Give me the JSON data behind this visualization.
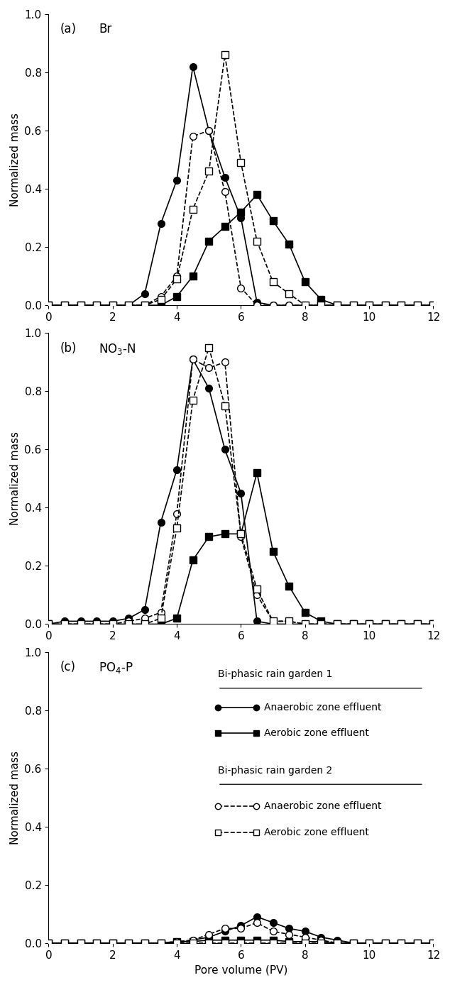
{
  "panel_a_label": "Br",
  "panel_b_label": "NO$_3$-N",
  "panel_c_label": "PO$_4$-P",
  "xlabel": "Pore volume (PV)",
  "ylabel": "Normalized mass",
  "xlim": [
    0,
    12
  ],
  "ylim": [
    0,
    1.0
  ],
  "yticks": [
    0.0,
    0.2,
    0.4,
    0.6,
    0.8,
    1.0
  ],
  "xticks": [
    0,
    2,
    4,
    6,
    8,
    10,
    12
  ],
  "br_g1_anaerobic_x": [
    0,
    0.5,
    1,
    1.5,
    2,
    2.5,
    3,
    3.5,
    4,
    4.5,
    5,
    5.5,
    6,
    6.5,
    7,
    7.5,
    8,
    8.5,
    9,
    9.5,
    10,
    10.5,
    11,
    11.5,
    12
  ],
  "br_g1_anaerobic_y": [
    0,
    0,
    0,
    0,
    0,
    0,
    0.04,
    0.28,
    0.43,
    0.82,
    0.6,
    0.44,
    0.3,
    0.01,
    0.0,
    0.0,
    0.0,
    0.0,
    0.0,
    0.0,
    0.0,
    0.0,
    0.0,
    0.0,
    0.0
  ],
  "br_g1_aerobic_x": [
    0,
    0.5,
    1,
    1.5,
    2,
    2.5,
    3,
    3.5,
    4,
    4.5,
    5,
    5.5,
    6,
    6.5,
    7,
    7.5,
    8,
    8.5,
    9,
    9.5,
    10,
    10.5,
    11,
    11.5,
    12
  ],
  "br_g1_aerobic_y": [
    0,
    0,
    0,
    0,
    0,
    0,
    0,
    0,
    0.03,
    0.1,
    0.22,
    0.27,
    0.32,
    0.38,
    0.29,
    0.21,
    0.08,
    0.02,
    0.0,
    0.0,
    0.0,
    0.0,
    0.0,
    0.0,
    0.0
  ],
  "br_g2_anaerobic_x": [
    0,
    0.5,
    1,
    1.5,
    2,
    2.5,
    3,
    3.5,
    4,
    4.5,
    5,
    5.5,
    6,
    6.5,
    7,
    7.5,
    8,
    8.5,
    9,
    9.5,
    10,
    10.5,
    11,
    11.5,
    12
  ],
  "br_g2_anaerobic_y": [
    0,
    0,
    0,
    0,
    0,
    0,
    0,
    0.03,
    0.1,
    0.58,
    0.6,
    0.39,
    0.06,
    0.0,
    0.0,
    0.0,
    0.0,
    0.0,
    0.0,
    0.0,
    0.0,
    0.0,
    0.0,
    0.0,
    0.0
  ],
  "br_g2_aerobic_x": [
    0,
    0.5,
    1,
    1.5,
    2,
    2.5,
    3,
    3.5,
    4,
    4.5,
    5,
    5.5,
    6,
    6.5,
    7,
    7.5,
    8,
    8.5,
    9,
    9.5,
    10,
    10.5,
    11,
    11.5,
    12
  ],
  "br_g2_aerobic_y": [
    0,
    0,
    0,
    0,
    0,
    0,
    0,
    0.02,
    0.09,
    0.33,
    0.46,
    0.86,
    0.49,
    0.22,
    0.08,
    0.04,
    0.0,
    0.0,
    0.0,
    0.0,
    0.0,
    0.0,
    0.0,
    0.0,
    0.0
  ],
  "no3_g1_anaerobic_x": [
    0,
    0.5,
    1,
    1.5,
    2,
    2.5,
    3,
    3.5,
    4,
    4.5,
    5,
    5.5,
    6,
    6.5,
    7,
    7.5,
    8,
    8.5,
    9,
    9.5,
    10,
    10.5,
    11,
    11.5,
    12
  ],
  "no3_g1_anaerobic_y": [
    0,
    0.01,
    0.01,
    0.01,
    0.01,
    0.02,
    0.05,
    0.35,
    0.53,
    0.91,
    0.81,
    0.6,
    0.45,
    0.01,
    0.0,
    0.0,
    0.0,
    0.0,
    0.0,
    0.0,
    0.0,
    0.0,
    0.0,
    0.0,
    0.0
  ],
  "no3_g1_aerobic_x": [
    0,
    0.5,
    1,
    1.5,
    2,
    2.5,
    3,
    3.5,
    4,
    4.5,
    5,
    5.5,
    6,
    6.5,
    7,
    7.5,
    8,
    8.5,
    9,
    9.5,
    10,
    10.5,
    11,
    11.5,
    12
  ],
  "no3_g1_aerobic_y": [
    0,
    0,
    0,
    0,
    0,
    0,
    0,
    0,
    0.02,
    0.22,
    0.3,
    0.31,
    0.31,
    0.52,
    0.25,
    0.13,
    0.04,
    0.01,
    0.0,
    0.0,
    0.0,
    0.0,
    0.0,
    0.0,
    0.0
  ],
  "no3_g2_anaerobic_x": [
    0,
    0.5,
    1,
    1.5,
    2,
    2.5,
    3,
    3.5,
    4,
    4.5,
    5,
    5.5,
    6,
    6.5,
    7,
    7.5,
    8,
    8.5,
    9,
    9.5,
    10,
    10.5,
    11,
    11.5,
    12
  ],
  "no3_g2_anaerobic_y": [
    0,
    0,
    0,
    0,
    0,
    0.01,
    0.02,
    0.04,
    0.38,
    0.91,
    0.88,
    0.9,
    0.3,
    0.1,
    0.01,
    0.01,
    0.0,
    0.0,
    0.0,
    0.0,
    0.0,
    0.0,
    0.0,
    0.0,
    0.0
  ],
  "no3_g2_aerobic_x": [
    0,
    0.5,
    1,
    1.5,
    2,
    2.5,
    3,
    3.5,
    4,
    4.5,
    5,
    5.5,
    6,
    6.5,
    7,
    7.5,
    8,
    8.5,
    9,
    9.5,
    10,
    10.5,
    11,
    11.5,
    12
  ],
  "no3_g2_aerobic_y": [
    0,
    0,
    0,
    0,
    0,
    0,
    0,
    0.02,
    0.33,
    0.77,
    0.95,
    0.75,
    0.31,
    0.12,
    0.01,
    0.01,
    0.0,
    0.0,
    0.0,
    0.0,
    0.0,
    0.0,
    0.0,
    0.0,
    0.0
  ],
  "po4_g1_anaerobic_x": [
    0,
    0.5,
    1,
    1.5,
    2,
    2.5,
    3,
    3.5,
    4,
    4.5,
    5,
    5.5,
    6,
    6.5,
    7,
    7.5,
    8,
    8.5,
    9,
    9.5,
    10,
    10.5,
    11,
    11.5,
    12
  ],
  "po4_g1_anaerobic_y": [
    0,
    0,
    0,
    0,
    0,
    0,
    0,
    0,
    0,
    0.01,
    0.02,
    0.04,
    0.06,
    0.09,
    0.07,
    0.05,
    0.04,
    0.02,
    0.01,
    0.0,
    0.0,
    0.0,
    0.0,
    0.0,
    0.0
  ],
  "po4_g1_aerobic_x": [
    0,
    0.5,
    1,
    1.5,
    2,
    2.5,
    3,
    3.5,
    4,
    4.5,
    5,
    5.5,
    6,
    6.5,
    7,
    7.5,
    8,
    8.5,
    9,
    9.5,
    10,
    10.5,
    11,
    11.5,
    12
  ],
  "po4_g1_aerobic_y": [
    0,
    0,
    0,
    0,
    0,
    0,
    0,
    0,
    0.005,
    0.005,
    0.01,
    0.01,
    0.01,
    0.01,
    0.01,
    0.005,
    0.005,
    0.005,
    0.0,
    0.0,
    0.0,
    0.0,
    0.0,
    0.0,
    0.0
  ],
  "po4_g2_anaerobic_x": [
    0,
    0.5,
    1,
    1.5,
    2,
    2.5,
    3,
    3.5,
    4,
    4.5,
    5,
    5.5,
    6,
    6.5,
    7,
    7.5,
    8,
    8.5,
    9,
    9.5,
    10,
    10.5,
    11,
    11.5,
    12
  ],
  "po4_g2_anaerobic_y": [
    0,
    0,
    0,
    0,
    0,
    0,
    0,
    0,
    0.005,
    0.01,
    0.03,
    0.05,
    0.05,
    0.07,
    0.04,
    0.03,
    0.02,
    0.01,
    0.0,
    0.0,
    0.0,
    0.0,
    0.0,
    0.0,
    0.0
  ],
  "po4_g2_aerobic_x": [
    0,
    0.5,
    1,
    1.5,
    2,
    2.5,
    3,
    3.5,
    4,
    4.5,
    5,
    5.5,
    6,
    6.5,
    7,
    7.5,
    8,
    8.5,
    9,
    9.5,
    10,
    10.5,
    11,
    11.5,
    12
  ],
  "po4_g2_aerobic_y": [
    0,
    0,
    0,
    0,
    0,
    0,
    0,
    0,
    0,
    0,
    0,
    0,
    0,
    0,
    0,
    0,
    0,
    0,
    0,
    0,
    0,
    0,
    0,
    0,
    0
  ],
  "legend_title1": "Bi-phasic rain garden 1",
  "legend_title2": "Bi-phasic rain garden 2",
  "legend_l1": "Anaerobic zone effluent",
  "legend_l2": "Aerobic zone effluent",
  "legend_l3": "Anaerobic zone effluent",
  "legend_l4": "Aerobic zone effluent"
}
